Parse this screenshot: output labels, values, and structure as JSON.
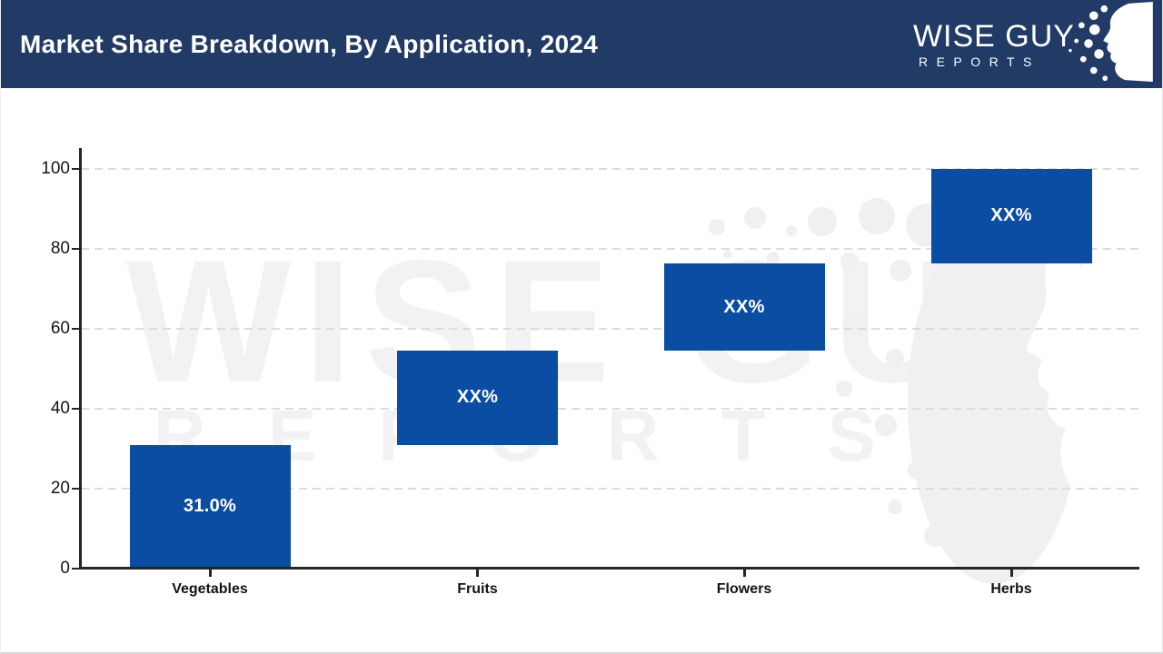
{
  "header": {
    "title": "Market Share Breakdown, By Application, 2024",
    "logo": {
      "primary": "WISE GUY",
      "secondary": "REPORTS"
    }
  },
  "watermark": {
    "primary": "WISE GUY",
    "secondary": "REPORTS"
  },
  "chart_data": {
    "type": "bar",
    "subtype": "waterfall",
    "title": "Market Share Breakdown, By Application, 2024",
    "categories": [
      "Vegetables",
      "Fruits",
      "Flowers",
      "Herbs"
    ],
    "segments": [
      {
        "category": "Vegetables",
        "start": 0,
        "end": 31.0,
        "value": 31.0,
        "label": "31.0%"
      },
      {
        "category": "Fruits",
        "start": 31.0,
        "end": 54.5,
        "value": 23.5,
        "label": "XX%"
      },
      {
        "category": "Flowers",
        "start": 54.5,
        "end": 76.4,
        "value": 21.9,
        "label": "XX%"
      },
      {
        "category": "Herbs",
        "start": 76.4,
        "end": 100.0,
        "value": 23.6,
        "label": "XX%"
      }
    ],
    "xlabel": "",
    "ylabel": "",
    "yticks": [
      0,
      20,
      40,
      60,
      80,
      100
    ],
    "ylim": [
      0,
      105
    ],
    "grid": "horizontal-dashed",
    "legend": "none",
    "bar_color": "#0B4DA2"
  },
  "colors": {
    "header_bg": "#213A66",
    "bar": "#0B4DA2",
    "axis": "#262626",
    "gridline": "#DCDCDC",
    "tick_text": "#141414",
    "bar_label_text": "#FFFFFF",
    "watermark": "#F2F2F5",
    "background": "#FFFFFF"
  }
}
